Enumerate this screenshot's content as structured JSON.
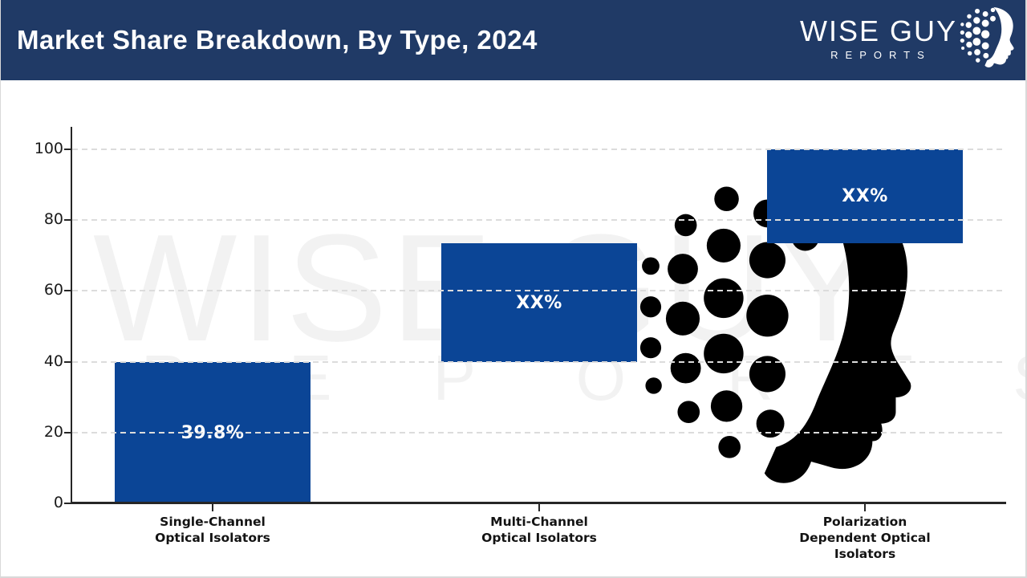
{
  "header": {
    "title": "Market Share Breakdown, By Type, 2024",
    "logo": {
      "line1": "WISE GUY",
      "line2": "REPORTS"
    }
  },
  "watermark": {
    "line1": "WISE GUY",
    "line2": "R E P O R T S"
  },
  "colors": {
    "header_bg": "#203a66",
    "bar_blue": "#0b4596",
    "axis": "#262626",
    "grid": "#dcdcdc",
    "text_dark": "#131313",
    "white": "#ffffff",
    "border_gray": "#d9d9d9",
    "watermark_gray": "#f2f2f2"
  },
  "chart_data": {
    "type": "bar",
    "subtype": "waterfall",
    "title": "Market Share Breakdown, By Type, 2024",
    "categories": [
      "Single-Channel Optical Isolators",
      "Multi-Channel Optical Isolators",
      "Polarization Dependent Optical Isolators"
    ],
    "category_lines": [
      [
        "Single-Channel",
        "Optical Isolators"
      ],
      [
        "Multi-Channel",
        "Optical Isolators"
      ],
      [
        "Polarization",
        "Dependent Optical",
        "Isolators"
      ]
    ],
    "series": [
      {
        "name": "Market Share (%)",
        "segments": [
          {
            "category": "Single-Channel Optical Isolators",
            "start": 0,
            "end": 39.8,
            "label": "39.8%"
          },
          {
            "category": "Multi-Channel Optical Isolators",
            "start": 39.8,
            "end": 73.5,
            "label": "XX%"
          },
          {
            "category": "Polarization Dependent Optical Isolators",
            "start": 73.5,
            "end": 100,
            "label": "XX%"
          }
        ]
      }
    ],
    "yticks": [
      0,
      20,
      40,
      60,
      80,
      100
    ],
    "ylim": [
      0,
      105.9
    ],
    "grid": "horizontal-dashed",
    "legend": "none",
    "xlabel": "",
    "ylabel": ""
  }
}
